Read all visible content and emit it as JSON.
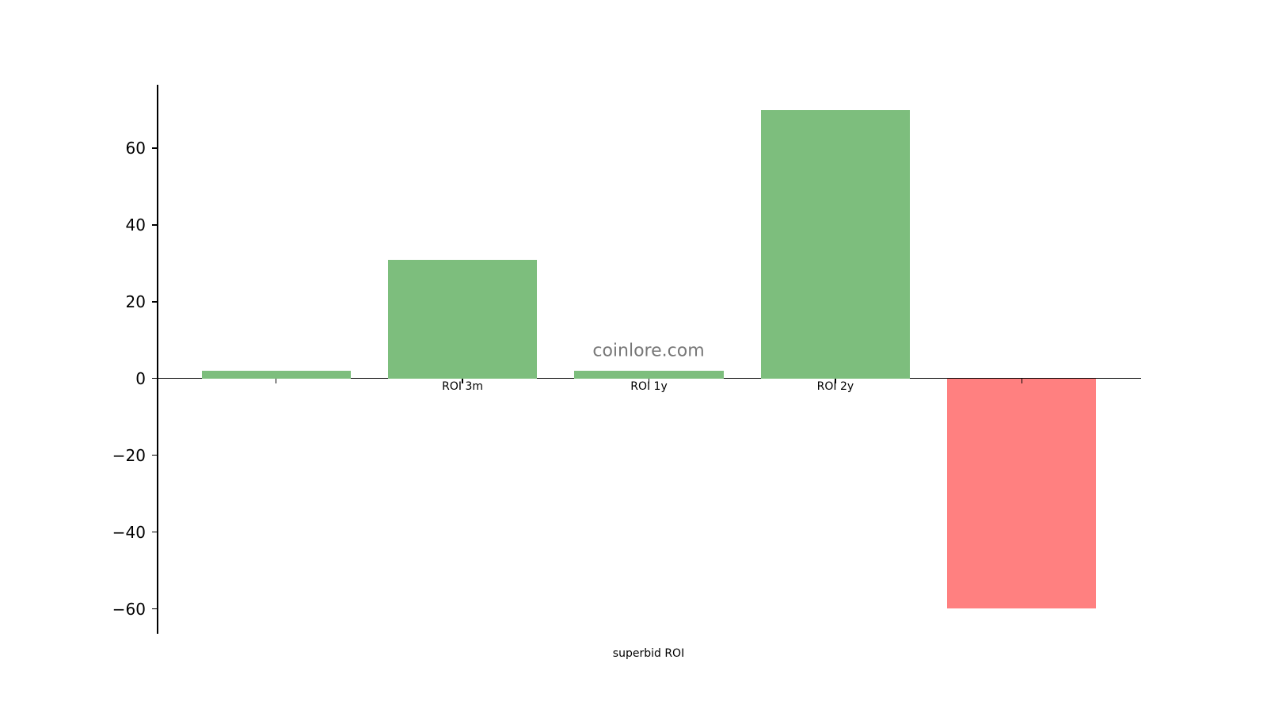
{
  "watermark": "coinlore.com",
  "chart_data": {
    "type": "bar",
    "title": "",
    "xlabel": "superbid ROI",
    "ylabel": "",
    "categories": [
      "",
      "ROI 3m",
      "ROI 1y",
      "ROI 2y",
      ""
    ],
    "values": [
      2,
      31,
      2,
      70,
      -60
    ],
    "bar_colors": [
      "#7dbe7d",
      "#7dbe7d",
      "#7dbe7d",
      "#7dbe7d",
      "#ff8080"
    ],
    "colors": {
      "positive": "#7dbe7d",
      "negative": "#ff8080",
      "axis": "#000000",
      "watermark": "#777777"
    },
    "yticks": [
      {
        "v": -60,
        "label": "−60"
      },
      {
        "v": -40,
        "label": "−40"
      },
      {
        "v": -20,
        "label": "−20"
      },
      {
        "v": 0,
        "label": "0"
      },
      {
        "v": 20,
        "label": "20"
      },
      {
        "v": 40,
        "label": "40"
      },
      {
        "v": 60,
        "label": "60"
      }
    ],
    "ylim": [
      -66.5,
      76.5
    ],
    "grid": false,
    "legend_position": "none",
    "axis_note": "x-axis line drawn at y=0; only left spine shown; first and last bars have no visible category label"
  }
}
